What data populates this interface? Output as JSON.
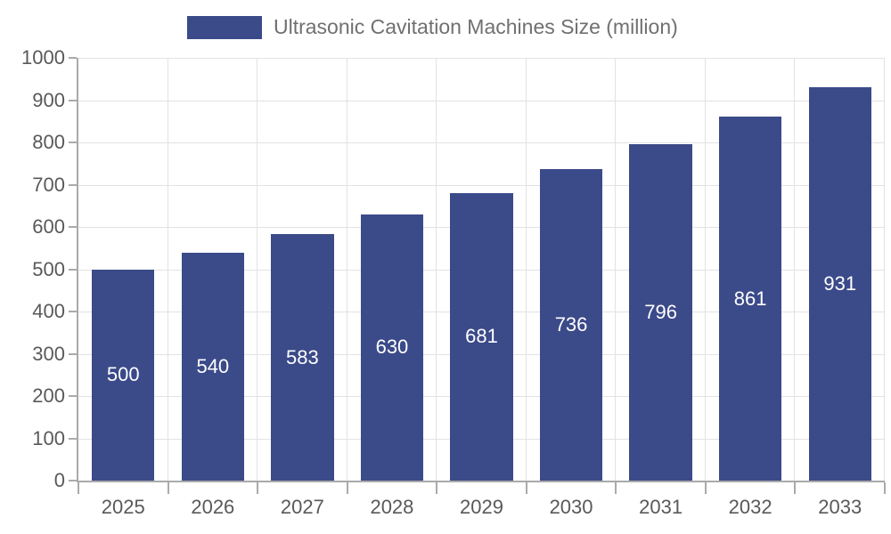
{
  "legend": {
    "label": "Ultrasonic Cavitation Machines Size (million)"
  },
  "chart_data": {
    "type": "bar",
    "title": "Ultrasonic Cavitation Machines Size (million)",
    "categories": [
      "2025",
      "2026",
      "2027",
      "2028",
      "2029",
      "2030",
      "2031",
      "2032",
      "2033"
    ],
    "values": [
      500,
      540,
      583,
      630,
      681,
      736,
      796,
      861,
      931
    ],
    "xlabel": "",
    "ylabel": "",
    "ylim": [
      0,
      1000
    ],
    "yticks": [
      0,
      100,
      200,
      300,
      400,
      500,
      600,
      700,
      800,
      900,
      1000
    ],
    "grid": true,
    "legend_position": "top",
    "bar_width_ratio": 0.7,
    "bar_color": "#3B4A89",
    "value_label_color": "#FFFFFF",
    "axis_color": "#AAAAAA",
    "grid_color": "#E2E2E2",
    "tick_label_color": "#595959",
    "legend_text_color": "#707070",
    "background_color": "#FFFFFF"
  }
}
